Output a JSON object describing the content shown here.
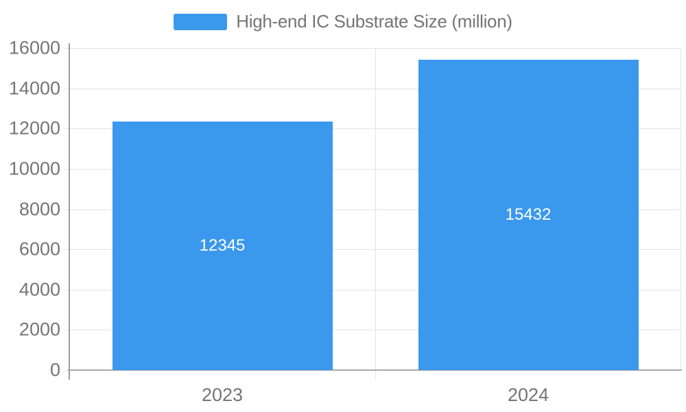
{
  "chart_data": {
    "type": "bar",
    "title": "",
    "legend_label": "High-end IC Substrate Size (million)",
    "legend_position": "top-center",
    "categories": [
      "2023",
      "2024"
    ],
    "series": [
      {
        "name": "High-end IC Substrate Size (million)",
        "values": [
          12345,
          15432
        ]
      }
    ],
    "value_labels": [
      "12345",
      "15432"
    ],
    "xlabel": "",
    "ylabel": "",
    "ylim": [
      0,
      16000
    ],
    "yticks": [
      0,
      2000,
      4000,
      6000,
      8000,
      10000,
      12000,
      14000,
      16000
    ],
    "grid": true,
    "colors": {
      "bar": "#3a98ed",
      "axis_text": "#757575",
      "value_text": "#ffffff",
      "gridline": "#e3e3e3",
      "axis_line": "#9b9b9b",
      "baseline": "#ababab"
    }
  }
}
